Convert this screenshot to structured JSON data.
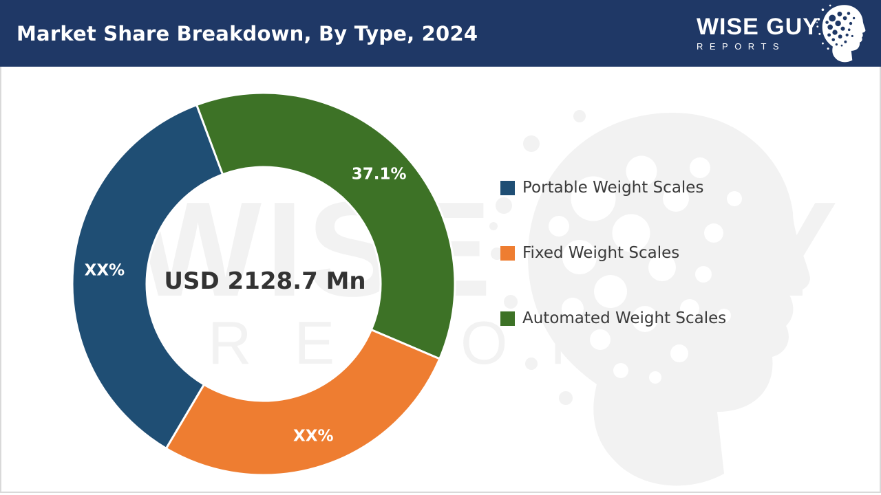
{
  "header": {
    "title": "Market Share Breakdown, By Type, 2024",
    "logo": {
      "line1": "WISE GUY",
      "line2": "REPORTS"
    }
  },
  "watermark": {
    "line1": "WISE GUY",
    "line2": "REPORTS"
  },
  "chart_data": {
    "type": "pie",
    "subtype": "donut",
    "title": "Market Share Breakdown, By Type, 2024",
    "center_label": "USD 2128.7 Mn",
    "legend_position": "right",
    "start_angle_deg": -20.5,
    "slices": [
      {
        "label": "Portable Weight Scales",
        "display_pct": "XX%",
        "pct": 35.8,
        "color": "#1f4e74"
      },
      {
        "label": "Fixed Weight Scales",
        "display_pct": "XX%",
        "pct": 27.1,
        "color": "#ee7d31"
      },
      {
        "label": "Automated Weight Scales",
        "display_pct": "37.1%",
        "pct": 37.1,
        "color": "#3d7226"
      }
    ]
  },
  "colors": {
    "header_bg": "#1f3866",
    "frame_border": "#d9d9d9",
    "center_text": "#333333",
    "legend_text": "#3a3a3a",
    "watermark": "#f2f2f2",
    "slice_divider": "#ffffff"
  }
}
